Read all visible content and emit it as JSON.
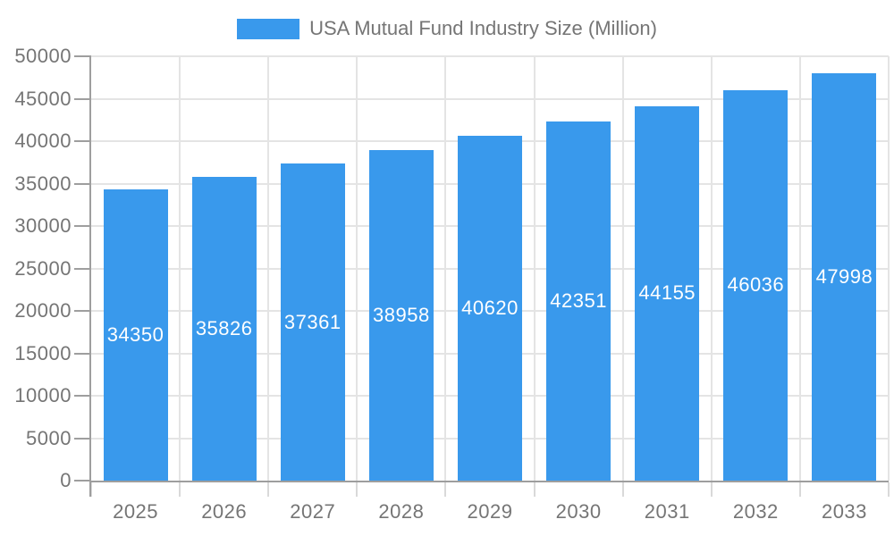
{
  "legend": {
    "label": "USA Mutual Fund Industry Size (Million)"
  },
  "chart_data": {
    "type": "bar",
    "title": "USA Mutual Fund Industry Size (Million)",
    "series_name": "USA Mutual Fund Industry Size (Million)",
    "categories": [
      "2025",
      "2026",
      "2027",
      "2028",
      "2029",
      "2030",
      "2031",
      "2032",
      "2033"
    ],
    "values": [
      34350,
      35826,
      37361,
      38958,
      40620,
      42351,
      44155,
      46036,
      47998
    ],
    "xlabel": "",
    "ylabel": "",
    "ylim": [
      0,
      50000
    ],
    "ytick_step": 5000,
    "yticks": [
      0,
      5000,
      10000,
      15000,
      20000,
      25000,
      30000,
      35000,
      40000,
      45000,
      50000
    ],
    "grid": true,
    "legend_position": "top-center",
    "value_labels": "inside-center",
    "colors": {
      "bar": "#3999EC",
      "value_label": "#ffffff",
      "axis": "#9e9e9e",
      "grid": "#e4e4e4",
      "tick_minor": "#d9d9d9",
      "text": "#757575",
      "background": "#ffffff"
    }
  }
}
